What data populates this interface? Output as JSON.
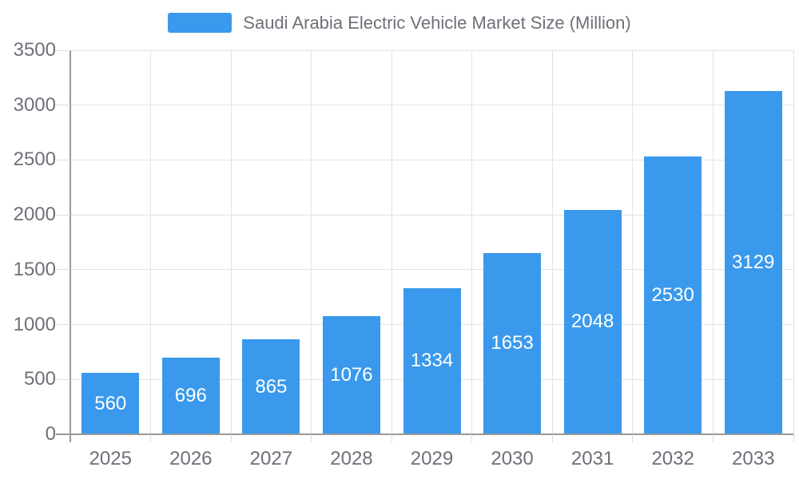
{
  "chart_data": {
    "type": "bar",
    "title": "Saudi Arabia Electric Vehicle Market Size (Million)",
    "series_name": "Saudi Arabia Electric Vehicle Market Size (Million)",
    "categories": [
      "2025",
      "2026",
      "2027",
      "2028",
      "2029",
      "2030",
      "2031",
      "2032",
      "2033"
    ],
    "values": [
      560,
      696,
      865,
      1076,
      1334,
      1653,
      2048,
      2530,
      3129
    ],
    "xlabel": "",
    "ylabel": "",
    "ylim": [
      0,
      3500
    ],
    "yticks": [
      0,
      500,
      1000,
      1500,
      2000,
      2500,
      3000,
      3500
    ],
    "grid": true,
    "legend_position": "top-center",
    "value_label_position": "inside-center",
    "colors": {
      "bar": "#3A99EC",
      "bar_label": "#FFFFFF",
      "axis_line": "#999999",
      "gridline": "#E3E3E3",
      "tick": "#DCDCDC",
      "text": "#6E7079",
      "background": "#FFFFFF"
    }
  }
}
